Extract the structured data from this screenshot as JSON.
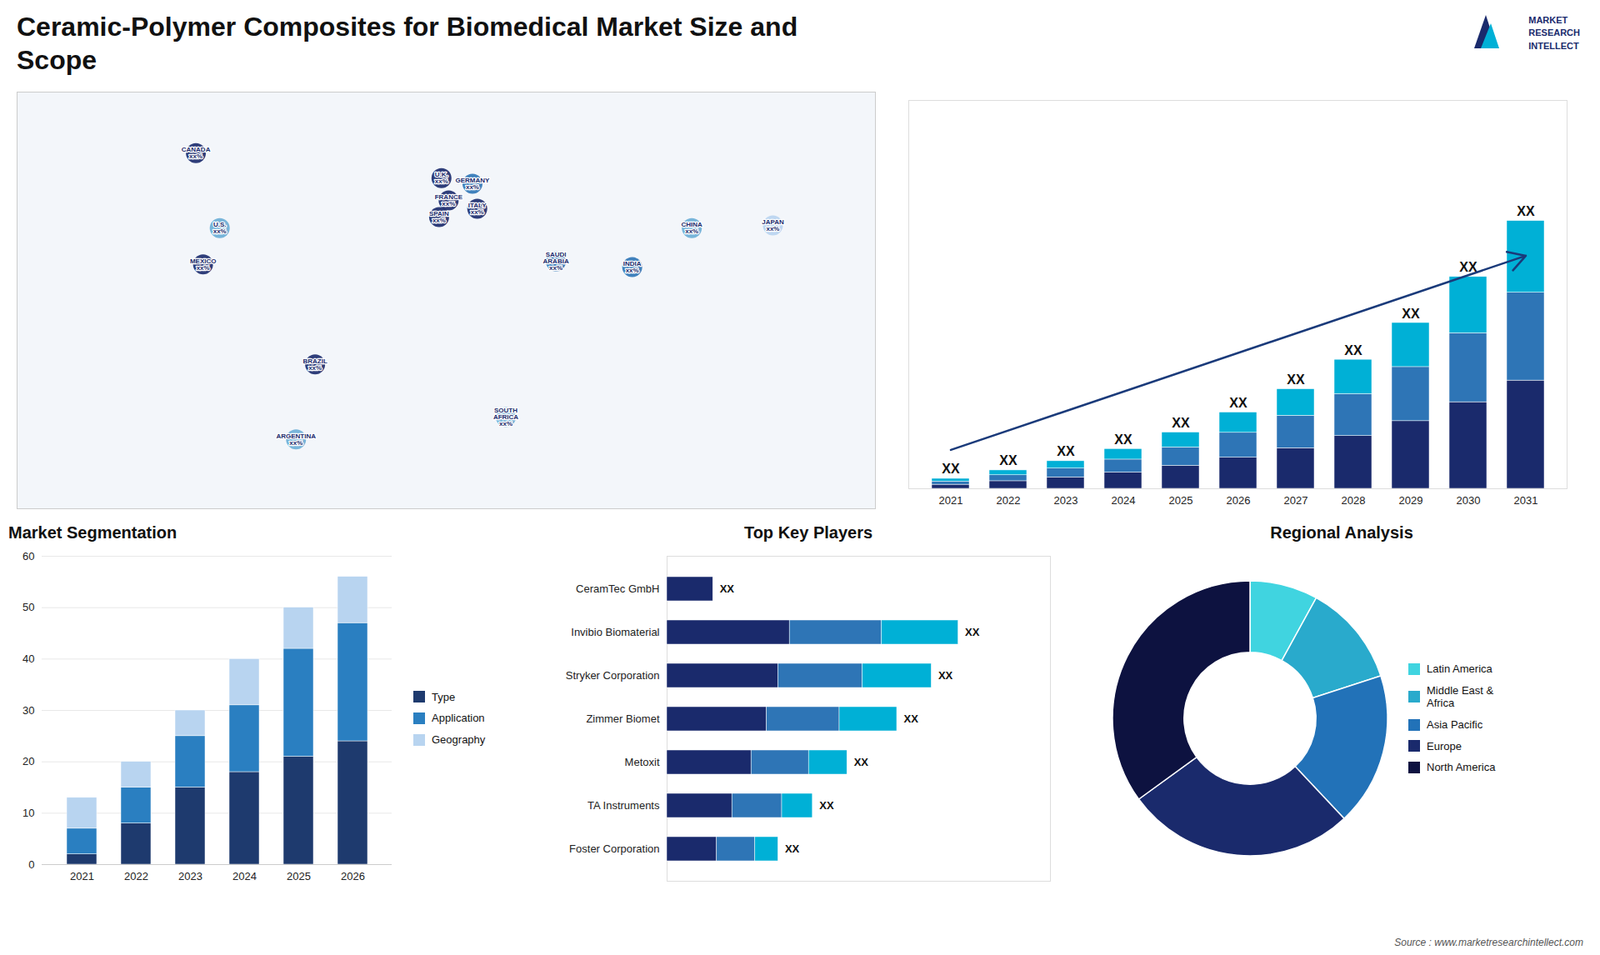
{
  "title": "Ceramic-Polymer Composites for Biomedical Market Size and\nScope",
  "annotations": [
    "Source : www.marketresearchintellect.com",
    "MARKET\nRESEARCH\nINTELLECT"
  ],
  "chart_data": [
    {
      "type": "map",
      "categories": [
        "CANADA\nxx%",
        "U.S.\nxx%",
        "MEXICO\nxx%",
        "BRAZIL\nxx%",
        "ARGENTINA\nxx%",
        "U.K.\nxx%",
        "FRANCE\nxx%",
        "GERMANY\nxx%",
        "SPAIN\nxx%",
        "ITALY\nxx%",
        "SAUDI\nARABIA\nxx%",
        "SOUTH\nAFRICA\nxx%",
        "INDIA\nxx%",
        "CHINA\nxx%",
        "JAPAN\nxx%"
      ],
      "x": [
        -105,
        -95,
        -102,
        -55,
        -63,
        -2,
        1,
        11,
        -3,
        13,
        46,
        25,
        78,
        103,
        137
      ],
      "values": [
        63,
        36,
        23,
        -13,
        -40,
        54,
        46,
        52,
        40,
        43,
        24,
        -32,
        22,
        36,
        37
      ],
      "colors": [
        "#1a2a6c",
        "#6aaed6",
        "#1a2a6c",
        "#1a2a6c",
        "#6aaed6",
        "#1a2a6c",
        "#1a2a6c",
        "#2e75b6",
        "#1a2a6c",
        "#1a2a6c",
        "#2e75b6",
        "#6aaed6",
        "#2e75b6",
        "#6aaed6",
        "#b8d4f0"
      ],
      "xlim": [
        -180,
        180
      ],
      "ylim": [
        -65,
        85
      ],
      "tick_labels": false
    },
    {
      "type": "bar",
      "stacked": true,
      "categories": [
        2021,
        2022,
        2023,
        2024,
        2025,
        2026,
        2027,
        2028,
        2029,
        2030,
        2031
      ],
      "series": [
        {
          "color": "#1a2a6c",
          "values": [
            1.5,
            2.8,
            4.2,
            6.0,
            8.5,
            11.5,
            15.0,
            19.5,
            25.0,
            32.0,
            40.0
          ]
        },
        {
          "color": "#2e75b6",
          "values": [
            1.2,
            2.2,
            3.3,
            4.8,
            6.8,
            9.2,
            12.0,
            15.5,
            20.0,
            25.5,
            32.5
          ]
        },
        {
          "color": "#00b0d6",
          "values": [
            1.0,
            1.8,
            2.7,
            3.9,
            5.5,
            7.5,
            9.8,
            12.7,
            16.3,
            20.8,
            26.5
          ]
        }
      ],
      "annotations": [
        "XX",
        "XX",
        "XX",
        "XX",
        "XX",
        "XX",
        "XX",
        "XX",
        "XX",
        "XX",
        "XX"
      ],
      "ylim": [
        0,
        143.55
      ],
      "tick_labels": "x"
    },
    {
      "type": "bar",
      "stacked": true,
      "title": "Market Segmentation",
      "categories": [
        2021,
        2022,
        2023,
        2024,
        2025,
        2026
      ],
      "series": [
        {
          "name": "Type",
          "color": "#1e3a6e",
          "values": [
            2,
            8,
            15,
            18,
            21,
            24
          ]
        },
        {
          "name": "Application",
          "color": "#2a7fc1",
          "values": [
            5,
            7,
            10,
            13,
            21,
            23
          ]
        },
        {
          "name": "Geography",
          "color": "#b8d4f0",
          "values": [
            6,
            5,
            5,
            9,
            8,
            9
          ]
        }
      ],
      "ylim": [
        0,
        60
      ],
      "yticks": [
        0,
        10,
        20,
        30,
        40,
        50,
        60
      ],
      "grid": true,
      "legend": "right"
    },
    {
      "type": "bar",
      "stacked": true,
      "orientation": "horizontal",
      "title": "Top Key Players",
      "categories": [
        "CeramTec GmbH",
        "Invibio Biomaterial",
        "Stryker Corporation",
        "Zimmer Biomet",
        "Metoxit",
        "TA Instruments",
        "Foster Corporation"
      ],
      "series": [
        {
          "color": "#1a2a6c",
          "values": [
            0.12,
            0.32,
            0.29,
            0.26,
            0.22,
            0.17,
            0.13
          ]
        },
        {
          "color": "#2e75b6",
          "values": [
            0.0,
            0.24,
            0.22,
            0.19,
            0.15,
            0.13,
            0.1
          ]
        },
        {
          "color": "#00b0d6",
          "values": [
            0.0,
            0.2,
            0.18,
            0.15,
            0.1,
            0.08,
            0.06
          ]
        }
      ],
      "annotations": [
        "XX",
        "XX",
        "XX",
        "XX",
        "XX",
        "XX",
        "XX"
      ],
      "xlim": [
        0,
        1
      ],
      "tick_labels": "y"
    },
    {
      "type": "donut",
      "title": "Regional Analysis",
      "categories": [
        "Latin America",
        "Middle East &\nAfrica",
        "Asia Pacific",
        "Europe",
        "North America"
      ],
      "values": [
        8,
        12,
        18,
        27,
        35
      ],
      "colors": [
        "#40d4e0",
        "#29aacc",
        "#2272b8",
        "#1a2a6c",
        "#0d1240"
      ],
      "legend": "right"
    }
  ]
}
